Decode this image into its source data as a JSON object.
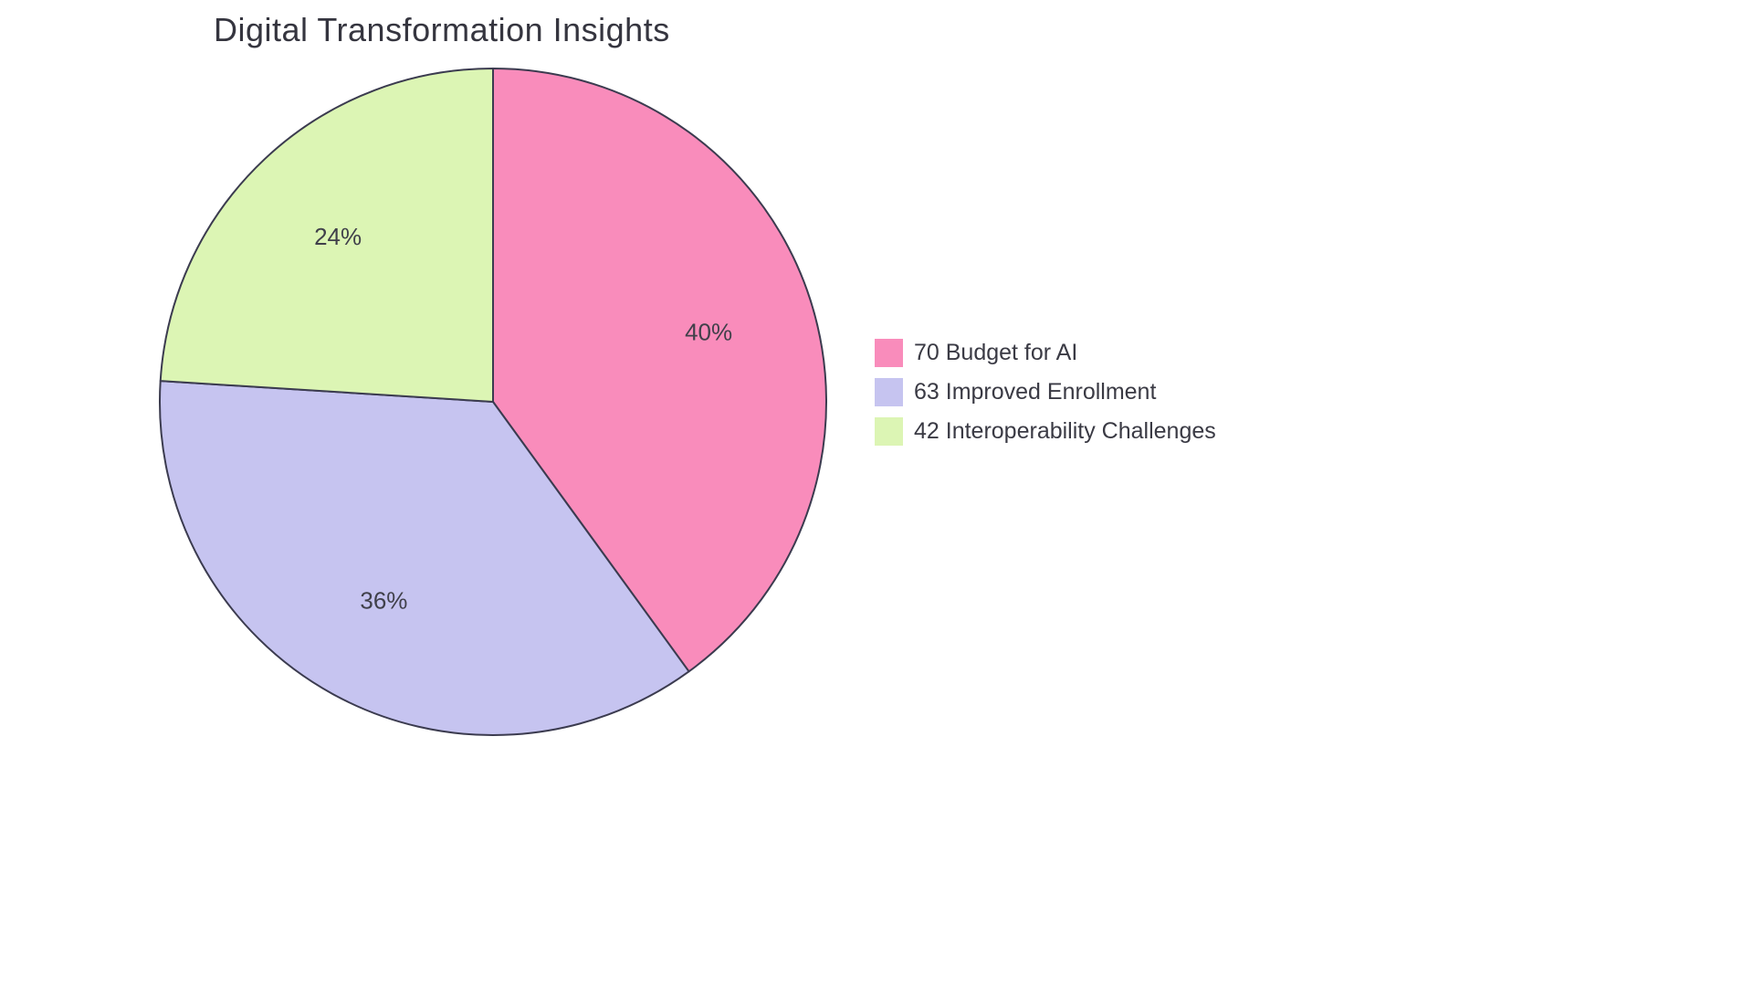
{
  "chart_data": {
    "type": "pie",
    "title": "Digital Transformation Insights",
    "labels": [
      "70 Budget for AI",
      "63 Improved Enrollment",
      "42 Interoperability Challenges"
    ],
    "values": [
      70,
      63,
      42
    ],
    "percentages": [
      40,
      36,
      24
    ],
    "percent_labels": [
      "40%",
      "36%",
      "24%"
    ],
    "colors": [
      "#F98CBB",
      "#C6C4F0",
      "#DCF5B4"
    ],
    "stroke_color": "#3B3B4F",
    "label_color": "#40404a",
    "title_color": "#35353f",
    "legend_position": "right",
    "start_angle_deg": 0,
    "direction": "clockwise"
  }
}
